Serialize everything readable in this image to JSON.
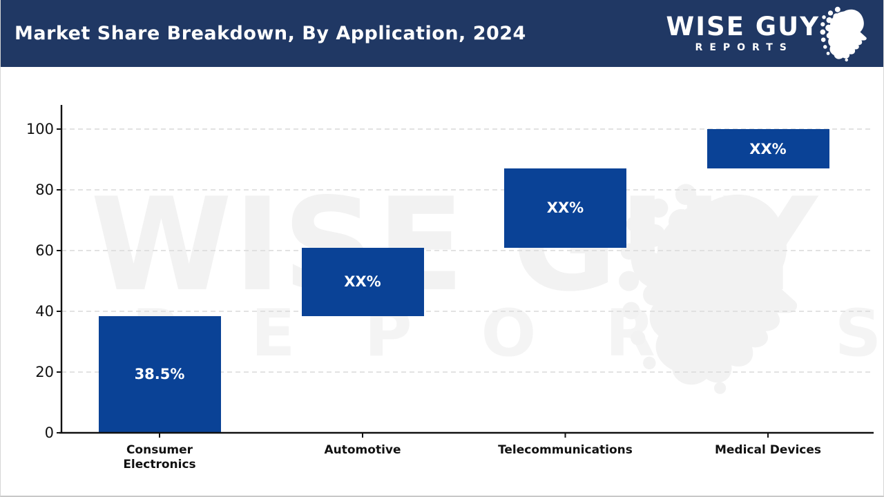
{
  "header": {
    "title": "Market Share Breakdown, By Application, 2024",
    "logo_text": "WISE GUY",
    "logo_subtext": "REPORTS"
  },
  "watermark": {
    "line1": "WISE GUY",
    "line2": "REPORTS"
  },
  "colors": {
    "header_bg": "#203864",
    "bar": "#0a4296",
    "grid": "#d9d9d9",
    "axis": "#111111",
    "watermark": "#f2f2f2",
    "bar_label": "#ffffff"
  },
  "chart_data": {
    "type": "bar",
    "subtype": "waterfall",
    "title": "Market Share Breakdown, By Application, 2024",
    "xlabel": "",
    "ylabel": "",
    "categories": [
      "Consumer\nElectronics",
      "Automotive",
      "Telecommunications",
      "Medical Devices"
    ],
    "segments": [
      {
        "category": "Consumer Electronics",
        "start": 0,
        "end": 38.5,
        "label": "38.5%"
      },
      {
        "category": "Automotive",
        "start": 38.5,
        "end": 61,
        "label": "XX%"
      },
      {
        "category": "Telecommunications",
        "start": 61,
        "end": 87,
        "label": "XX%"
      },
      {
        "category": "Medical Devices",
        "start": 87,
        "end": 100,
        "label": "XX%"
      }
    ],
    "yticks": [
      0,
      20,
      40,
      60,
      80,
      100
    ],
    "ylim": [
      0,
      106
    ],
    "grid": "horizontal-dashed",
    "legend": "none"
  }
}
